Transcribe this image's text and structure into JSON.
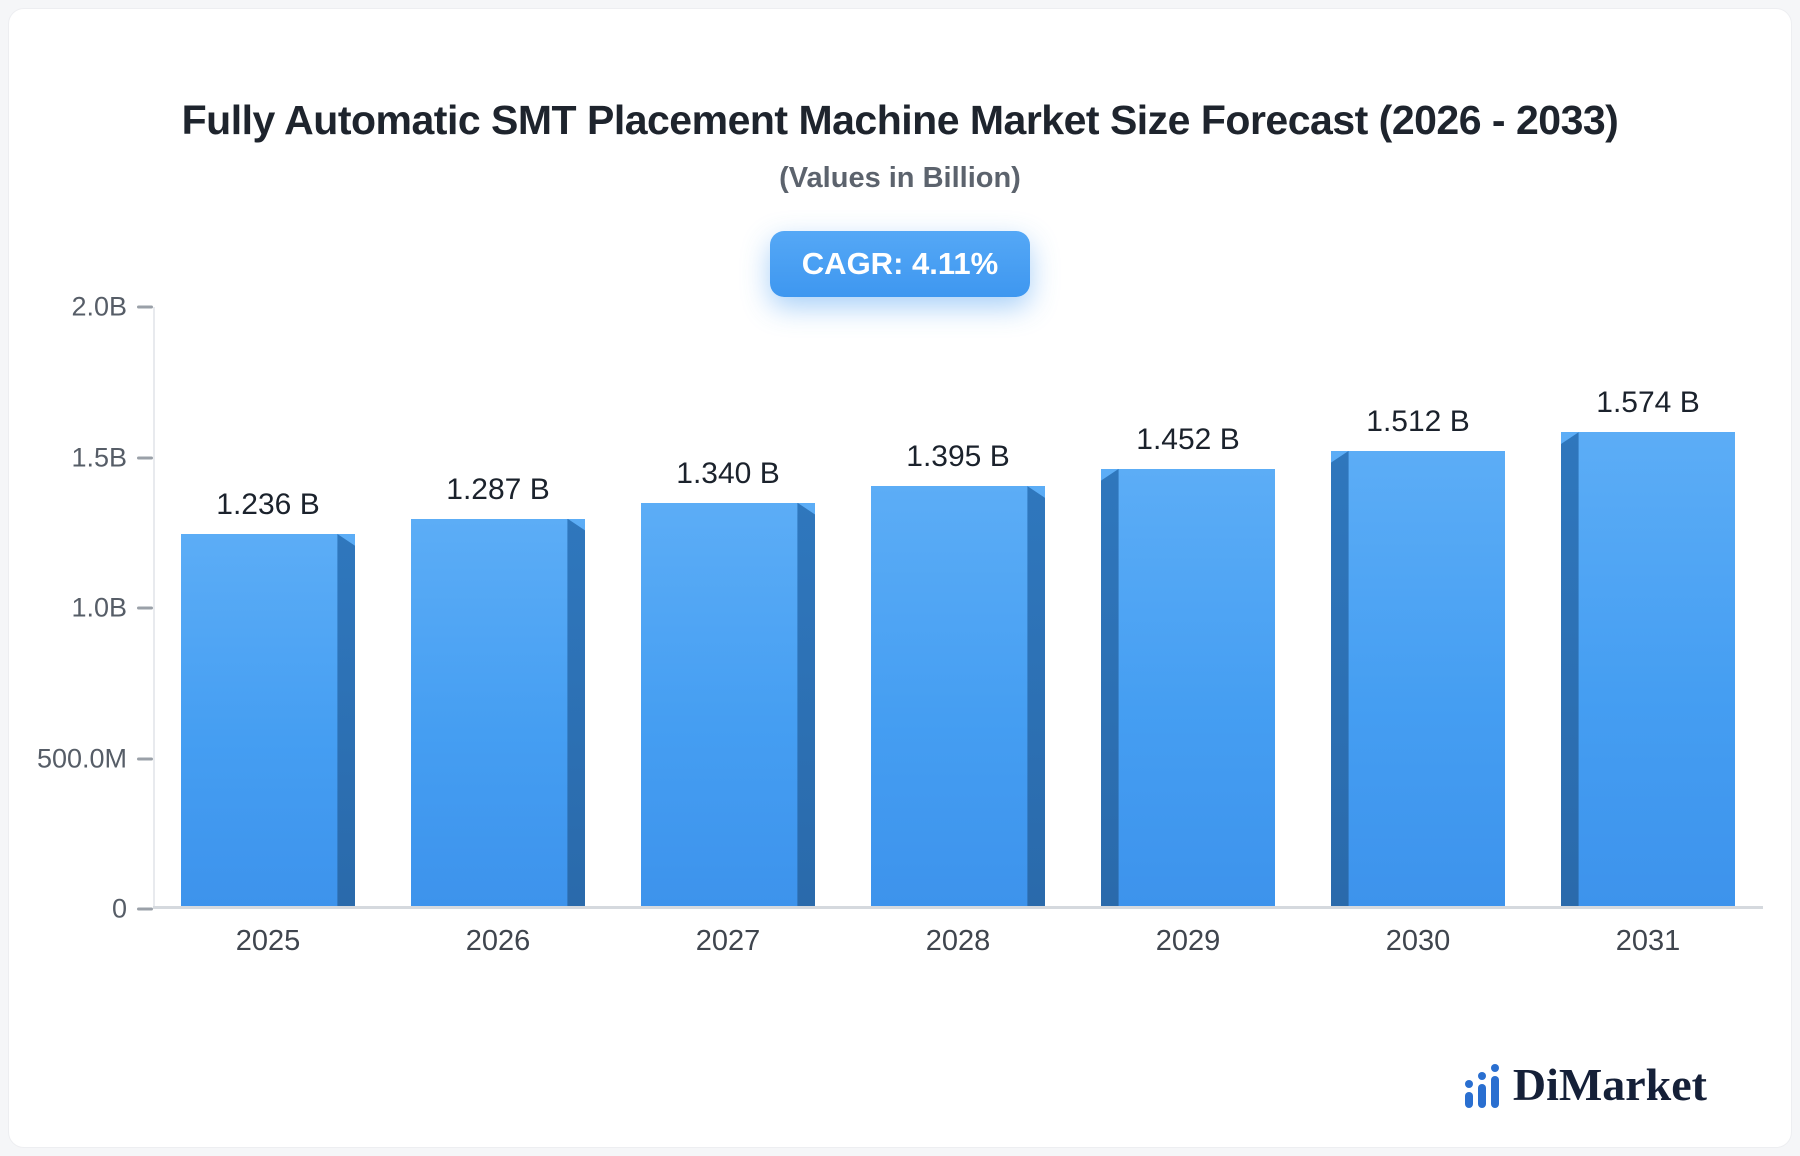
{
  "header": {
    "title": "Fully Automatic SMT Placement Machine Market Size Forecast (2026 - 2033)",
    "subtitle": "(Values in Billion)"
  },
  "badge": {
    "label": "CAGR: 4.11%"
  },
  "chart_data": {
    "type": "bar",
    "title": "Fully Automatic SMT Placement Machine Market Size Forecast (2026 - 2033)",
    "subtitle": "(Values in Billion)",
    "cagr": "4.11%",
    "categories": [
      "2025",
      "2026",
      "2027",
      "2028",
      "2029",
      "2030",
      "2031"
    ],
    "values": [
      1.236,
      1.287,
      1.34,
      1.395,
      1.452,
      1.512,
      1.574
    ],
    "value_labels": [
      "1.236 B",
      "1.287 B",
      "1.340 B",
      "1.395 B",
      "1.452 B",
      "1.512 B",
      "1.574 B"
    ],
    "unit": "B",
    "xlabel": "",
    "ylabel": "",
    "ylim": [
      0,
      2.0
    ],
    "yticks": [
      {
        "value": 0,
        "label": "0"
      },
      {
        "value": 0.5,
        "label": "500.0M"
      },
      {
        "value": 1.0,
        "label": "1.0B"
      },
      {
        "value": 1.5,
        "label": "1.5B"
      },
      {
        "value": 2.0,
        "label": "2.0B"
      }
    ],
    "grid": false,
    "legend": "none",
    "bar_color": "#459EF2",
    "bar_side_color": "#2C70B8"
  },
  "footer": {
    "brand": "DiMarket",
    "brand_icon": "bar-chart-icon"
  },
  "colors": {
    "accent": "#459EF2",
    "badge_bg": "#469FF3",
    "title_text": "#1E242D",
    "axis_text": "#565D67",
    "baseline": "#D5D9DE",
    "background": "#FFFFFF"
  }
}
